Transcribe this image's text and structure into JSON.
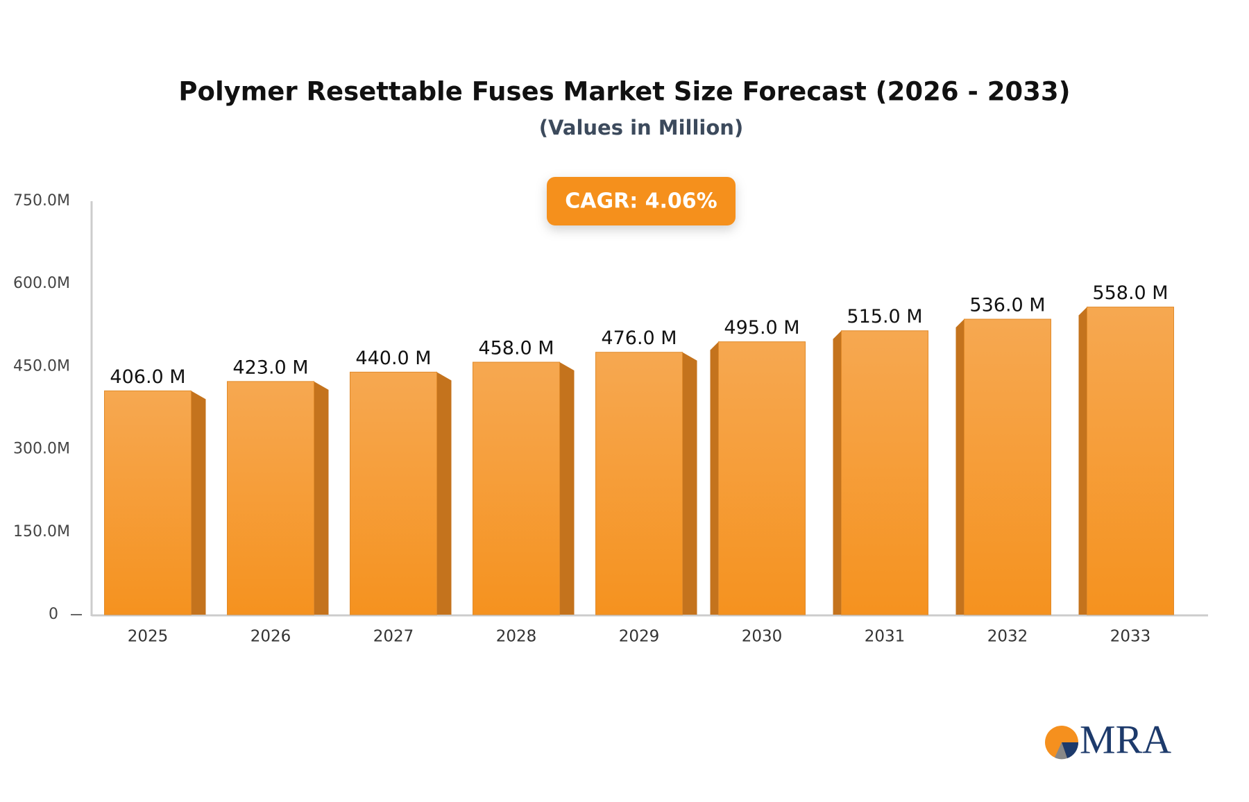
{
  "chart_data": {
    "type": "bar",
    "title": "Polymer Resettable Fuses Market Size Forecast (2026 - 2033)",
    "subtitle": "(Values in Million)",
    "annotation": "CAGR: 4.06%",
    "categories": [
      "2025",
      "2026",
      "2027",
      "2028",
      "2029",
      "2030",
      "2031",
      "2032",
      "2033"
    ],
    "values": [
      406,
      423,
      440,
      458,
      476,
      495,
      515,
      536,
      558
    ],
    "value_labels": [
      "406.0 M",
      "423.0 M",
      "440.0 M",
      "458.0 M",
      "476.0 M",
      "495.0 M",
      "515.0 M",
      "536.0 M",
      "558.0 M"
    ],
    "color": "#f59a35",
    "ylim": [
      0,
      750
    ],
    "yticks": [
      0,
      {
        "value": 150,
        "label": "150.0M"
      },
      {
        "value": 300,
        "label": "300.0M"
      },
      {
        "value": 450,
        "label": "450.0M"
      },
      {
        "value": 600,
        "label": "600.0M"
      },
      {
        "value": 750,
        "label": "750.0M"
      }
    ],
    "grid": false
  },
  "logo": "MRA"
}
